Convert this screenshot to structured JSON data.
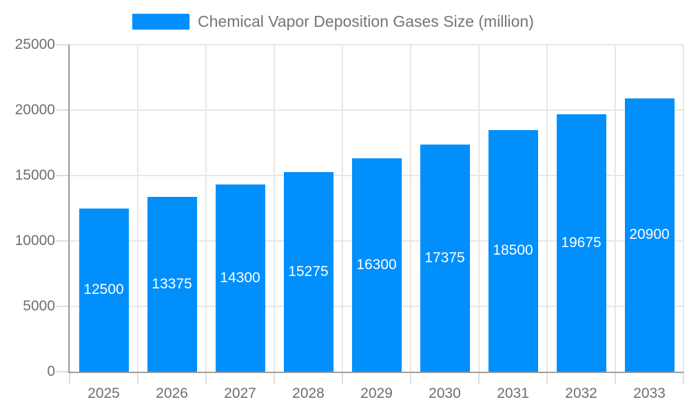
{
  "chart_data": {
    "type": "bar",
    "title": "Chemical Vapor Deposition Gases Size (million)",
    "legend": {
      "label": "Chemical Vapor Deposition Gases Size (million)",
      "position": "top"
    },
    "categories": [
      "2025",
      "2026",
      "2027",
      "2028",
      "2029",
      "2030",
      "2031",
      "2032",
      "2033"
    ],
    "values": [
      12500,
      13375,
      14300,
      15275,
      16300,
      17375,
      18500,
      19675,
      20900
    ],
    "xlabel": "",
    "ylabel": "",
    "ylim": [
      0,
      25000
    ],
    "y_ticks": [
      0,
      5000,
      10000,
      15000,
      20000,
      25000
    ],
    "grid": true,
    "value_labels": "inside-center",
    "colors": {
      "bar": "#008FFB",
      "value_label": "#FFFFFF",
      "axis_line": "#9E9E9E",
      "gridline": "#E7E7E7",
      "tick_mark": "#DCDCDC",
      "axis_label": "#6E6E6E",
      "legend_text": "#757575",
      "background": "#FFFFFF"
    }
  }
}
